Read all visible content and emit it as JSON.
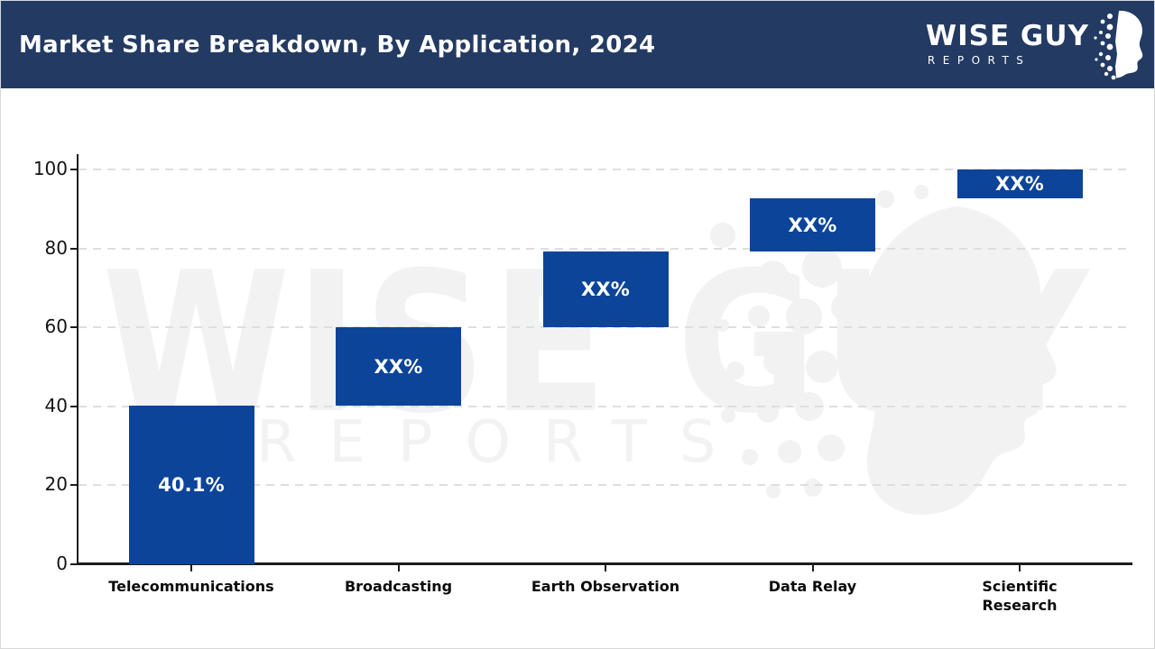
{
  "header": {
    "title": "Market Share Breakdown, By Application, 2024",
    "logo": {
      "wordmark": "WISE GUY",
      "subtext": "REPORTS"
    }
  },
  "watermark": {
    "line1": "WISE GUY",
    "line2": "REPORTS"
  },
  "colors": {
    "header_bg": "#233A63",
    "bar": "#0C4499",
    "bar_label_text": "#FFFFFF",
    "axis": "#1C1C1C",
    "grid": "#DEDEDE",
    "tick_label_text": "#141414",
    "watermark": "#F2F2F2",
    "title_text": "#FFFFFF"
  },
  "chart_data": {
    "type": "bar",
    "subtype": "waterfall-floating-segments",
    "title": "Market Share Breakdown, By Application, 2024",
    "categories": [
      "Telecommunications",
      "Broadcasting",
      "Earth Observation",
      "Data Relay",
      "Scientific Research"
    ],
    "category_label_lines": [
      [
        "Telecommunications"
      ],
      [
        "Broadcasting"
      ],
      [
        "Earth Observation"
      ],
      [
        "Data Relay"
      ],
      [
        "Scientific",
        "Research"
      ]
    ],
    "segments": [
      {
        "category": "Telecommunications",
        "start": 0,
        "end": 40.1,
        "label": "40.1%"
      },
      {
        "category": "Broadcasting",
        "start": 40.1,
        "end": 60.1,
        "label": "XX%"
      },
      {
        "category": "Earth Observation",
        "start": 60.1,
        "end": 79.2,
        "label": "XX%"
      },
      {
        "category": "Data Relay",
        "start": 79.2,
        "end": 92.7,
        "label": "XX%"
      },
      {
        "category": "Scientific Research",
        "start": 92.7,
        "end": 100,
        "label": "XX%"
      }
    ],
    "ylim": [
      0,
      100
    ],
    "yticks": [
      0,
      20,
      40,
      60,
      80,
      100
    ],
    "xlabel": "",
    "ylabel": "",
    "grid": "horizontal dashed",
    "legend": "none"
  }
}
